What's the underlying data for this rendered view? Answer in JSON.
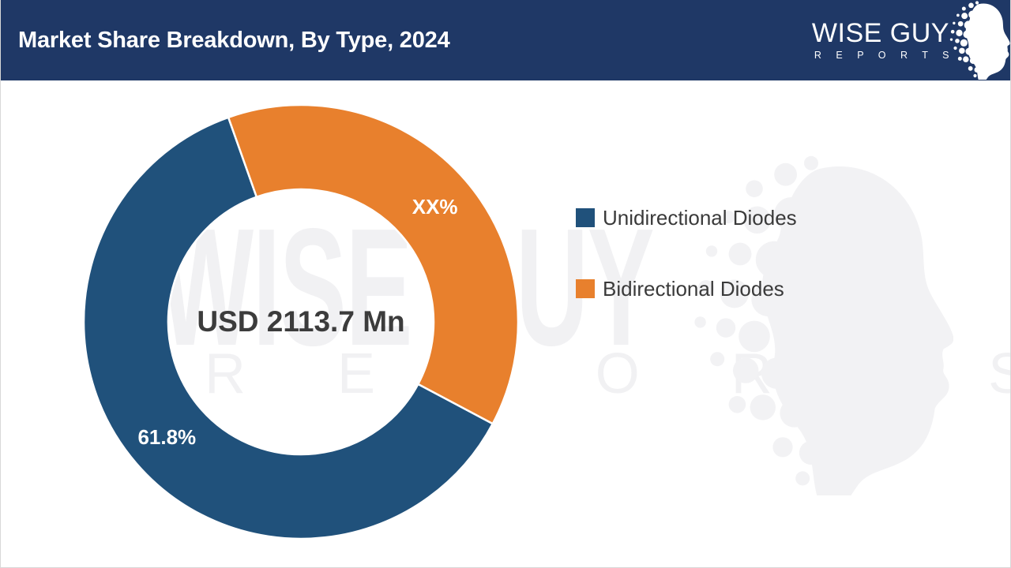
{
  "header": {
    "title": "Market Share Breakdown, By Type, 2024",
    "logo": {
      "line1": "WISE GUY",
      "line2": "R E P O R T S"
    }
  },
  "chart_data": {
    "type": "pie",
    "variant": "donut",
    "title": "Market Share Breakdown, By Type, 2024",
    "center_label": "USD 2113.7 Mn",
    "start_angle_deg": 118,
    "direction": "clockwise",
    "legend_position": "right",
    "categories": [
      "Unidirectional Diodes",
      "Bidirectional Diodes"
    ],
    "slices": [
      {
        "label": "Unidirectional Diodes",
        "value": 61.8,
        "display": "61.8%",
        "color": "#20517b"
      },
      {
        "label": "Bidirectional Diodes",
        "value": 38.2,
        "display": "XX%",
        "color": "#e8802d",
        "note": "percentage masked as XX% in source image"
      }
    ]
  },
  "watermark": {
    "line1": "WISE GUY",
    "line2": "R E P O R T S"
  },
  "colors": {
    "header_bg": "#1f3866",
    "slice_blue": "#20517b",
    "slice_orange": "#e8802d",
    "legend_text": "#3a3a3a",
    "center_text": "#3c3c3c",
    "watermark_gray": "#f1f1f3",
    "border": "#d8d8d8"
  }
}
